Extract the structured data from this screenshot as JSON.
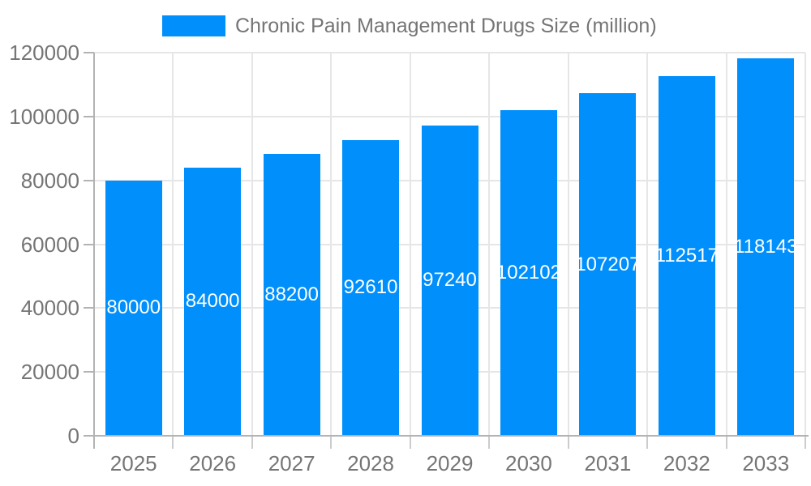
{
  "legend": {
    "label": "Chronic Pain Management Drugs Size (million)",
    "swatch_color": "#008FFB"
  },
  "chart_data": {
    "type": "bar",
    "title": "Chronic Pain Management Drugs Size (million)",
    "categories": [
      "2025",
      "2026",
      "2027",
      "2028",
      "2029",
      "2030",
      "2031",
      "2032",
      "2033"
    ],
    "values": [
      80000,
      84000,
      88200,
      92610,
      97240,
      102102,
      107207,
      112517,
      118143
    ],
    "bar_labels": [
      "80000",
      "84000",
      "88200",
      "92610",
      "97240",
      "102102",
      "107207",
      "112517",
      "118143"
    ],
    "xlabel": "",
    "ylabel": "",
    "ylim": [
      0,
      120000
    ],
    "ytick_step": 20000,
    "ytick_labels": [
      "0",
      "20000",
      "40000",
      "60000",
      "80000",
      "100000",
      "120000"
    ],
    "grid": true,
    "legend_position": "top",
    "colors": {
      "bar": "#008FFB",
      "bar_label_text": "#ffffff",
      "axis_text": "#757575",
      "gridline": "#e6e6e6",
      "axis_line": "#b3b3b3",
      "x_tick": "#cccccc"
    }
  }
}
